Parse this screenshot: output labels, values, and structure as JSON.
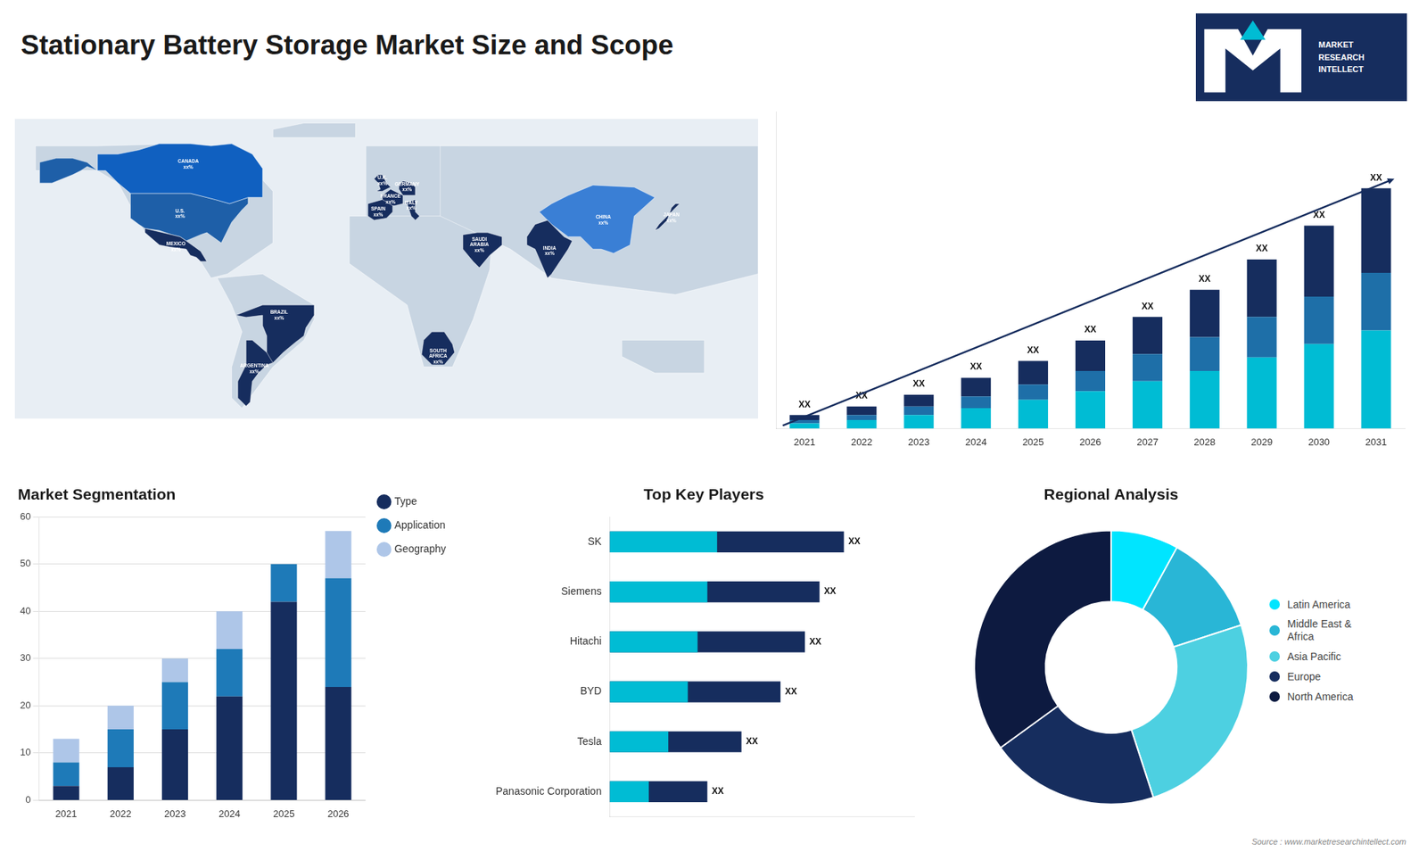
{
  "title": "Stationary Battery Storage Market Size and Scope",
  "annotations": [
    "MARKET\nRESEARCH\nINTELLECT",
    "Source : www.marketresearchintellect.com"
  ],
  "chart_data": [
    {
      "type": "map",
      "xlim": [
        -180,
        180
      ],
      "ylim": [
        -60,
        85
      ],
      "tick_labels": false,
      "color": "#c8d5e2",
      "annotations": [
        {
          "text": "U.S.\nxx%",
          "x": -100,
          "y": 39,
          "color": "#1e5fa8"
        },
        {
          "text": "CANADA\nxx%",
          "x": -96,
          "y": 63,
          "color": "#1060c0"
        },
        {
          "text": "MEXICO\nxx%",
          "x": -102,
          "y": 23,
          "color": "#162d5e"
        },
        {
          "text": "BRAZIL\nxx%",
          "x": -52,
          "y": -10,
          "color": "#162d5e"
        },
        {
          "text": "ARGENTINA\nxx%",
          "x": -64,
          "y": -36,
          "color": "#162d5e"
        },
        {
          "text": "FRANCE\nxx%",
          "x": 2,
          "y": 46,
          "color": "#162d5e"
        },
        {
          "text": "GERMANY\nxx%",
          "x": 10,
          "y": 52,
          "color": "#162d5e"
        },
        {
          "text": "U.K.\nxx%",
          "x": -2,
          "y": 55,
          "color": "#162d5e"
        },
        {
          "text": "SPAIN\nxx%",
          "x": -4,
          "y": 40,
          "color": "#162d5e"
        },
        {
          "text": "ITALY\nxx%",
          "x": 12,
          "y": 43,
          "color": "#162d5e"
        },
        {
          "text": "CHINA\nxx%",
          "x": 105,
          "y": 36,
          "color": "#3a7fd5"
        },
        {
          "text": "JAPAN\nxx%",
          "x": 138,
          "y": 37,
          "color": "#162d5e"
        },
        {
          "text": "INDIA\nxx%",
          "x": 79,
          "y": 21,
          "color": "#162d5e"
        },
        {
          "text": "SOUTH\nAFRICA\nxx%",
          "x": 25,
          "y": -30,
          "color": "#162d5e"
        },
        {
          "text": "SAUDI\nARABIA\nxx%",
          "x": 45,
          "y": 24,
          "color": "#162d5e"
        }
      ]
    },
    {
      "type": "bar",
      "stacked": true,
      "data_labels": true,
      "grid": false,
      "tick_labels": "x",
      "categories": [
        "2021",
        "2022",
        "2023",
        "2024",
        "2025",
        "2026",
        "2027",
        "2028",
        "2029",
        "2030",
        "2031"
      ],
      "series": [
        {
          "color": "#00bcd4",
          "values": [
            1.5,
            2.5,
            4.0,
            6.0,
            8.5,
            11.0,
            14.0,
            17.0,
            21.0,
            25.0,
            29.0
          ]
        },
        {
          "color": "#1e6fa8",
          "values": [
            1.0,
            1.5,
            2.5,
            3.5,
            4.5,
            6.0,
            8.0,
            10.0,
            12.0,
            14.0,
            17.0
          ]
        },
        {
          "color": "#162d5e",
          "values": [
            1.5,
            2.5,
            3.5,
            5.5,
            7.0,
            9.0,
            11.0,
            14.0,
            17.0,
            21.0,
            25.0
          ],
          "value_labels": [
            "XX",
            "XX",
            "XX",
            "XX",
            "XX",
            "XX",
            "XX",
            "XX",
            "XX",
            "XX",
            "XX"
          ]
        }
      ],
      "ylim": [
        0,
        93.72
      ]
    },
    {
      "type": "bar",
      "title": "Market Segmentation",
      "stacked": true,
      "grid": true,
      "legend": "right",
      "categories": [
        "2021",
        "2022",
        "2023",
        "2024",
        "2025",
        "2026"
      ],
      "series": [
        {
          "name": "Type",
          "color": "#162d5e",
          "values": [
            3,
            7,
            15,
            22,
            42,
            24
          ]
        },
        {
          "name": "Application",
          "color": "#1e7ab8",
          "values": [
            5,
            8,
            10,
            10,
            8,
            23
          ]
        },
        {
          "name": "Geography",
          "color": "#aec6e8",
          "values": [
            5,
            5,
            5,
            8,
            0,
            10
          ]
        }
      ],
      "ylim": [
        0,
        60
      ],
      "yticks": [
        0,
        10,
        20,
        30,
        40,
        50,
        60
      ]
    },
    {
      "type": "bar",
      "title": "Top Key Players",
      "orientation": "horizontal",
      "data_labels": true,
      "grid": false,
      "tick_labels": "y",
      "categories": [
        "SK",
        "Siemens",
        "Hitachi",
        "BYD",
        "Tesla",
        "Panasonic Corporation"
      ],
      "series": [
        {
          "color": "#162d5e",
          "values": [
            48,
            43,
            40,
            35,
            27,
            20
          ],
          "value_labels": [
            "XX",
            "XX",
            "XX",
            "XX",
            "XX",
            "XX"
          ]
        },
        {
          "color": "#00bcd4",
          "values": [
            22,
            20,
            18,
            16,
            12,
            8
          ]
        }
      ],
      "xlim": [
        0,
        62.4
      ]
    },
    {
      "type": "doughnut",
      "title": "Regional Analysis",
      "legend": "right",
      "categories": [
        "Latin America",
        "Middle East &\nAfrica",
        "Asia Pacific",
        "Europe",
        "North America"
      ],
      "values": [
        8,
        12,
        25,
        20,
        35
      ],
      "colors": [
        "#00e5ff",
        "#29b6d6",
        "#4dd0e1",
        "#162d5e",
        "#0d1a40"
      ]
    }
  ]
}
